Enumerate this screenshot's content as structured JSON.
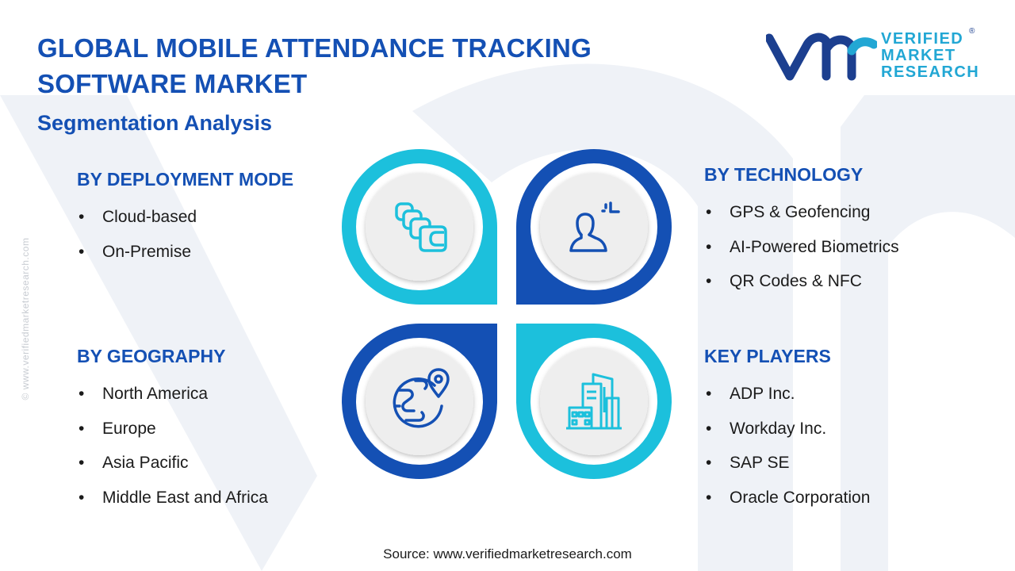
{
  "title": "GLOBAL MOBILE ATTENDANCE  TRACKING SOFTWARE MARKET",
  "subtitle": "Segmentation Analysis",
  "logo": {
    "line1": "VERIFIED",
    "line2": "MARKET",
    "line3": "RESEARCH",
    "registered": "®"
  },
  "side_watermark": "© www.verifiedmarketresearch.com",
  "segments": {
    "deployment": {
      "heading": "BY DEPLOYMENT MODE",
      "items": [
        "Cloud-based",
        "On-Premise"
      ]
    },
    "technology": {
      "heading": "BY TECHNOLOGY",
      "items": [
        "GPS & Geofencing",
        "AI-Powered Biometrics",
        "QR Codes & NFC"
      ]
    },
    "geography": {
      "heading": "BY GEOGRAPHY",
      "items": [
        "North America",
        "Europe",
        "Asia Pacific",
        "Middle East and Africa"
      ]
    },
    "players": {
      "heading": "KEY PLAYERS",
      "items": [
        "ADP Inc.",
        "Workday Inc.",
        "SAP SE",
        "Oracle Corporation"
      ]
    }
  },
  "bullet": "•",
  "icons": [
    "cloud-stack-icon",
    "biometric-user-icon",
    "globe-location-icon",
    "office-buildings-icon"
  ],
  "colors": {
    "dark_blue": "#1450b4",
    "cyan": "#1cc0dc",
    "icon_bg": "#eeeeee"
  },
  "source": "Source: www.verifiedmarketresearch.com"
}
